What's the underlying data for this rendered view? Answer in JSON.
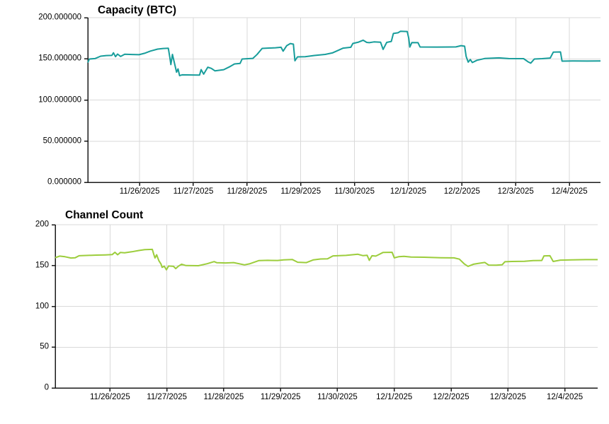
{
  "colors": {
    "background": "#ffffff",
    "grid": "#d9d9d9",
    "axis": "#1a1a1a",
    "text": "#000000",
    "capacity_line": "#189d9b",
    "channel_line": "#9ccd3c"
  },
  "chart_data": [
    {
      "type": "line",
      "title": "Capacity (BTC)",
      "xlabel": "",
      "ylabel": "",
      "ylim": [
        0,
        200
      ],
      "grid": true,
      "legend": "none",
      "line_color": "#189d9b",
      "y_ticks": [
        {
          "label": "200.000000",
          "value": 200
        },
        {
          "label": "150.000000",
          "value": 150
        },
        {
          "label": "100.000000",
          "value": 100
        },
        {
          "label": "50.000000",
          "value": 50
        },
        {
          "label": "0.000000",
          "value": 0
        }
      ],
      "x_ticks": [
        {
          "label": "11/26/2025",
          "pct": 10.1
        },
        {
          "label": "11/27/2025",
          "pct": 20.58
        },
        {
          "label": "11/28/2025",
          "pct": 31.06
        },
        {
          "label": "11/29/2025",
          "pct": 41.54
        },
        {
          "label": "11/30/2025",
          "pct": 52.02
        },
        {
          "label": "12/1/2025",
          "pct": 62.5
        },
        {
          "label": "12/2/2025",
          "pct": 72.98
        },
        {
          "label": "12/3/2025",
          "pct": 83.46
        },
        {
          "label": "12/4/2025",
          "pct": 93.94
        }
      ],
      "points": [
        [
          0,
          145.5
        ],
        [
          0.3,
          149.8
        ],
        [
          1.4,
          150.3
        ],
        [
          2.5,
          153.2
        ],
        [
          3.6,
          154
        ],
        [
          4.7,
          154.2
        ],
        [
          5,
          157.3
        ],
        [
          5.4,
          152.6
        ],
        [
          5.8,
          155.8
        ],
        [
          6.4,
          152.9
        ],
        [
          7.2,
          155.5
        ],
        [
          8.6,
          155.3
        ],
        [
          10,
          155
        ],
        [
          11.2,
          157
        ],
        [
          12.2,
          159.4
        ],
        [
          13.6,
          161.8
        ],
        [
          14.7,
          162.6
        ],
        [
          15.7,
          162.8
        ],
        [
          16,
          151.9
        ],
        [
          16.2,
          143
        ],
        [
          16.5,
          155.4
        ],
        [
          17.1,
          139.5
        ],
        [
          17.3,
          133.8
        ],
        [
          17.6,
          137.8
        ],
        [
          17.9,
          129.6
        ],
        [
          18.4,
          130.6
        ],
        [
          20.5,
          130.4
        ],
        [
          21.8,
          130.2
        ],
        [
          22.1,
          136.9
        ],
        [
          22.6,
          131.4
        ],
        [
          23.4,
          139.8
        ],
        [
          24.1,
          138.4
        ],
        [
          24.8,
          135.4
        ],
        [
          26.5,
          136.8
        ],
        [
          27.6,
          140.2
        ],
        [
          28.6,
          143.8
        ],
        [
          29.7,
          144.4
        ],
        [
          30.1,
          149.8
        ],
        [
          32.2,
          150.6
        ],
        [
          33,
          155.2
        ],
        [
          34,
          162.7
        ],
        [
          36.6,
          163.4
        ],
        [
          37.7,
          164
        ],
        [
          38.1,
          159.3
        ],
        [
          38.8,
          166
        ],
        [
          39.5,
          168.6
        ],
        [
          40.1,
          167.8
        ],
        [
          40.4,
          147.6
        ],
        [
          40.9,
          152.4
        ],
        [
          42.4,
          152.6
        ],
        [
          44.2,
          154.1
        ],
        [
          46.3,
          155.4
        ],
        [
          47.7,
          157.2
        ],
        [
          49,
          160.8
        ],
        [
          49.8,
          163
        ],
        [
          51.3,
          164
        ],
        [
          51.7,
          168.7
        ],
        [
          52.8,
          170.3
        ],
        [
          53.7,
          172.6
        ],
        [
          54.4,
          170
        ],
        [
          54.9,
          169.6
        ],
        [
          55.8,
          170.6
        ],
        [
          57.1,
          170.2
        ],
        [
          57.6,
          161.5
        ],
        [
          58.3,
          170
        ],
        [
          59.2,
          171.2
        ],
        [
          59.6,
          180.8
        ],
        [
          60.5,
          181.6
        ],
        [
          61,
          183.4
        ],
        [
          62.3,
          183.2
        ],
        [
          62.6,
          175
        ],
        [
          62.8,
          164.3
        ],
        [
          63.2,
          169.8
        ],
        [
          64.4,
          169.6
        ],
        [
          64.8,
          164.4
        ],
        [
          68.1,
          164.3
        ],
        [
          71.8,
          164.5
        ],
        [
          72.8,
          166
        ],
        [
          73.5,
          165.3
        ],
        [
          73.8,
          152.8
        ],
        [
          74.2,
          146
        ],
        [
          74.6,
          149.2
        ],
        [
          75,
          145.5
        ],
        [
          75.9,
          148.2
        ],
        [
          77.4,
          150.4
        ],
        [
          80.2,
          151.2
        ],
        [
          82.1,
          150.3
        ],
        [
          85,
          150.2
        ],
        [
          85.9,
          146.3
        ],
        [
          86.4,
          144.8
        ],
        [
          87.1,
          149.8
        ],
        [
          88.6,
          150.2
        ],
        [
          90.2,
          151
        ],
        [
          90.8,
          158.2
        ],
        [
          92.2,
          158.4
        ],
        [
          92.5,
          147.2
        ],
        [
          94.6,
          147.4
        ],
        [
          97.4,
          147.3
        ],
        [
          100,
          147.4
        ]
      ]
    },
    {
      "type": "line",
      "title": "Channel Count",
      "xlabel": "",
      "ylabel": "",
      "ylim": [
        0,
        200
      ],
      "grid": true,
      "legend": "none",
      "line_color": "#9ccd3c",
      "y_ticks": [
        {
          "label": "200",
          "value": 200
        },
        {
          "label": "150",
          "value": 150
        },
        {
          "label": "100",
          "value": 100
        },
        {
          "label": "50",
          "value": 50
        },
        {
          "label": "0",
          "value": 0
        }
      ],
      "x_ticks": [
        {
          "label": "11/26/2025",
          "pct": 10.1
        },
        {
          "label": "11/27/2025",
          "pct": 20.58
        },
        {
          "label": "11/28/2025",
          "pct": 31.06
        },
        {
          "label": "11/29/2025",
          "pct": 41.54
        },
        {
          "label": "11/30/2025",
          "pct": 52.02
        },
        {
          "label": "12/1/2025",
          "pct": 62.5
        },
        {
          "label": "12/2/2025",
          "pct": 72.98
        },
        {
          "label": "12/3/2025",
          "pct": 83.46
        },
        {
          "label": "12/4/2025",
          "pct": 93.94
        }
      ],
      "points": [
        [
          0,
          159.6
        ],
        [
          0.8,
          161.6
        ],
        [
          1.8,
          160.8
        ],
        [
          2.9,
          159.2
        ],
        [
          3.7,
          159.6
        ],
        [
          4.4,
          162
        ],
        [
          6.1,
          162.4
        ],
        [
          7.6,
          162.8
        ],
        [
          9.2,
          163
        ],
        [
          10.5,
          163.4
        ],
        [
          11,
          166.2
        ],
        [
          11.5,
          163.2
        ],
        [
          12,
          166
        ],
        [
          12.8,
          165.6
        ],
        [
          14.1,
          166.8
        ],
        [
          15.4,
          168.4
        ],
        [
          16.5,
          169.4
        ],
        [
          17.9,
          169.8
        ],
        [
          18.2,
          163
        ],
        [
          18.4,
          159.2
        ],
        [
          18.7,
          163.2
        ],
        [
          19.1,
          156
        ],
        [
          19.5,
          151.8
        ],
        [
          19.7,
          147.8
        ],
        [
          20.1,
          149.2
        ],
        [
          20.5,
          144.8
        ],
        [
          20.9,
          149.4
        ],
        [
          21.8,
          149
        ],
        [
          22.2,
          146.2
        ],
        [
          22.7,
          149.2
        ],
        [
          23.3,
          151.6
        ],
        [
          24.1,
          150
        ],
        [
          26.4,
          149.8
        ],
        [
          28,
          152.2
        ],
        [
          29.3,
          154.8
        ],
        [
          29.8,
          153.4
        ],
        [
          31.4,
          153.2
        ],
        [
          32.9,
          153.6
        ],
        [
          34.9,
          150.8
        ],
        [
          35.8,
          152
        ],
        [
          37.5,
          156
        ],
        [
          39.2,
          156.4
        ],
        [
          41,
          156.2
        ],
        [
          42.1,
          157
        ],
        [
          43.7,
          157.4
        ],
        [
          44.7,
          154
        ],
        [
          46.3,
          153.6
        ],
        [
          47.6,
          157
        ],
        [
          48.9,
          158
        ],
        [
          50.2,
          158.2
        ],
        [
          51.2,
          161.8
        ],
        [
          53.6,
          162.4
        ],
        [
          55.8,
          163.8
        ],
        [
          56.7,
          162.2
        ],
        [
          57.5,
          162.6
        ],
        [
          57.9,
          156.4
        ],
        [
          58.4,
          162
        ],
        [
          59.1,
          161.6
        ],
        [
          59.6,
          163.2
        ],
        [
          60.4,
          166
        ],
        [
          62.1,
          166.2
        ],
        [
          62.5,
          159.4
        ],
        [
          63.3,
          160.8
        ],
        [
          64.3,
          161.2
        ],
        [
          65.6,
          160.4
        ],
        [
          68,
          160.2
        ],
        [
          71.1,
          159.6
        ],
        [
          73.5,
          159.4
        ],
        [
          74.5,
          157.8
        ],
        [
          75.4,
          152
        ],
        [
          76.1,
          149
        ],
        [
          77.1,
          151.6
        ],
        [
          78.2,
          152.8
        ],
        [
          79.2,
          153.8
        ],
        [
          79.9,
          150.6
        ],
        [
          81.3,
          150.4
        ],
        [
          82.4,
          151
        ],
        [
          82.9,
          154.6
        ],
        [
          84.2,
          155
        ],
        [
          86.5,
          155.2
        ],
        [
          88.1,
          156
        ],
        [
          89.7,
          156.2
        ],
        [
          90.1,
          161.8
        ],
        [
          91.2,
          162
        ],
        [
          91.8,
          155
        ],
        [
          93.1,
          156.6
        ],
        [
          95.2,
          157
        ],
        [
          97.8,
          157.2
        ],
        [
          100,
          157.2
        ]
      ]
    }
  ]
}
